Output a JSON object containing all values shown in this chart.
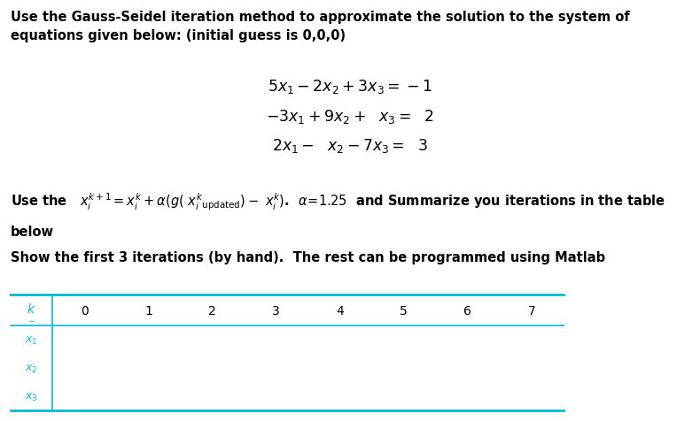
{
  "bg_color": "#ffffff",
  "text_color": "#000000",
  "table_line_color": "#00bcd4",
  "title_text": "Use the Gauss-Seidel iteration method to approximate the solution to the system of\nequations given below: (initial guess is 0,0,0)",
  "eq1": "$5x_1 - 2x_2 + 3x_3 = -1$",
  "eq2": "$-3x_1 + 9x_2 +\\ \\ x_3 =\\ \\ 2$",
  "eq3": "$2x_1 -\\ \\ x_2 - 7x_3 =\\ \\ 3$",
  "formula_line2": "below",
  "show_text": "Show the first 3 iterations (by hand).  The rest can be programmed using Matlab",
  "table_cols": [
    "k",
    "0",
    "1",
    "2",
    "3",
    "4",
    "5",
    "6",
    "7"
  ],
  "table_rows": [
    "$x_1$",
    "$x_2$",
    "$x_3$"
  ],
  "figsize": [
    7.9,
    4.77
  ],
  "dpi": 100
}
